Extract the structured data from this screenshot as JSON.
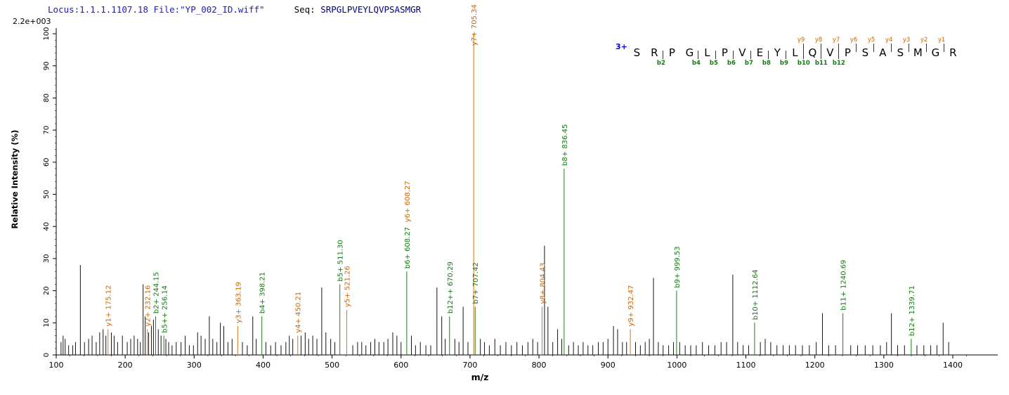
{
  "header": {
    "locus_file": "Locus:1.1.1.1107.18 File:\"YP_002_ID.wiff\"",
    "seq_label": "Seq:",
    "seq_value": "SRPGLPVEYLQVPSASMGR"
  },
  "colors": {
    "y_ion": "#cc6600",
    "y_line": "#d2781e",
    "b_ion": "#117a11",
    "b_line": "#1b7d1b",
    "peak": "#141414",
    "header_blue": "#1a1acd",
    "seq_blue": "#00008b",
    "charge_blue": "#0000dd"
  },
  "peptide": {
    "charge": "3+",
    "residues": [
      "S",
      "R",
      "P",
      "G",
      "L",
      "P",
      "V",
      "E",
      "Y",
      "L",
      "Q",
      "V",
      "P",
      "S",
      "A",
      "S",
      "M",
      "G",
      "R"
    ],
    "y_ions": [
      {
        "after": 10,
        "label": "y9"
      },
      {
        "after": 11,
        "label": "y8"
      },
      {
        "after": 12,
        "label": "y7"
      },
      {
        "after": 13,
        "label": "y6"
      },
      {
        "after": 14,
        "label": "y5"
      },
      {
        "after": 15,
        "label": "y4"
      },
      {
        "after": 16,
        "label": "y3"
      },
      {
        "after": 17,
        "label": "y2"
      },
      {
        "after": 18,
        "label": "y1"
      }
    ],
    "b_ions": [
      {
        "after": 2,
        "label": "b2"
      },
      {
        "after": 4,
        "label": "b4"
      },
      {
        "after": 5,
        "label": "b5"
      },
      {
        "after": 6,
        "label": "b6"
      },
      {
        "after": 7,
        "label": "b7"
      },
      {
        "after": 8,
        "label": "b8"
      },
      {
        "after": 9,
        "label": "b9"
      },
      {
        "after": 10,
        "label": "b10"
      },
      {
        "after": 11,
        "label": "b11"
      },
      {
        "after": 12,
        "label": "b12"
      }
    ]
  },
  "chart_data": {
    "type": "bar",
    "title": "",
    "xlabel": "m/z",
    "ylabel": "Relative  Intensity (%)",
    "intensity_scale": "2.2e+003",
    "xlim": [
      100,
      1430
    ],
    "ylim": [
      0,
      100
    ],
    "x_ticks": [
      100,
      200,
      300,
      400,
      500,
      600,
      700,
      800,
      900,
      1000,
      1100,
      1200,
      1300,
      1400
    ],
    "y_ticks": [
      0,
      10,
      20,
      30,
      40,
      50,
      60,
      70,
      80,
      90,
      100
    ],
    "legend": "none",
    "grid": false,
    "labeled_peaks": [
      {
        "mz": 175.12,
        "intensity": 8,
        "label": "y1+ 175.12",
        "ion": "y"
      },
      {
        "mz": 232.16,
        "intensity": 8,
        "label": "y2+ 232.16",
        "ion": "y"
      },
      {
        "mz": 244.15,
        "intensity": 12,
        "label": "b2+ 244.15",
        "ion": "b"
      },
      {
        "mz": 256.14,
        "intensity": 6,
        "label": "b5++ 256.14",
        "ion": "b"
      },
      {
        "mz": 363.19,
        "intensity": 9,
        "label": "y3+ 363.19",
        "ion": "y"
      },
      {
        "mz": 398.21,
        "intensity": 12,
        "label": "b4+ 398.21",
        "ion": "b"
      },
      {
        "mz": 450.21,
        "intensity": 6,
        "label": "y4+ 450.21",
        "ion": "y"
      },
      {
        "mz": 511.3,
        "intensity": 22,
        "label": "b5+ 511.30",
        "ion": "b"
      },
      {
        "mz": 521.26,
        "intensity": 14,
        "label": "y5+ 521.26",
        "ion": "y"
      },
      {
        "mz": 608.27,
        "intensity": 26,
        "label": "b6+ 608.27",
        "ion": "b"
      },
      {
        "mz": 608.27,
        "intensity": 26,
        "label": "y6+ 608.27",
        "ion": "y",
        "label_gap": 66,
        "draw_line": false
      },
      {
        "mz": 670.29,
        "intensity": 12,
        "label": "b12++ 670.29",
        "ion": "b"
      },
      {
        "mz": 705.34,
        "intensity": 100,
        "label": "y7+ 705.34",
        "ion": "y"
      },
      {
        "mz": 707.42,
        "intensity": 15,
        "label": "b7+ 707.42",
        "ion": "b"
      },
      {
        "mz": 804.43,
        "intensity": 15,
        "label": "y8+ 804.43",
        "ion": "y"
      },
      {
        "mz": 836.45,
        "intensity": 58,
        "label": "b8+ 836.45",
        "ion": "b"
      },
      {
        "mz": 932.47,
        "intensity": 8,
        "label": "y9+ 932.47",
        "ion": "y"
      },
      {
        "mz": 999.53,
        "intensity": 20,
        "label": "b9+ 999.53",
        "ion": "b"
      },
      {
        "mz": 1112.64,
        "intensity": 10,
        "label": "b10+ 1112.64",
        "ion": "b"
      },
      {
        "mz": 1240.69,
        "intensity": 13,
        "label": "b11+ 1240.69",
        "ion": "b"
      },
      {
        "mz": 1339.71,
        "intensity": 5,
        "label": "b12+ 1339.71",
        "ion": "b"
      }
    ],
    "noise_peaks": [
      [
        107,
        4
      ],
      [
        110,
        6
      ],
      [
        113,
        5
      ],
      [
        118,
        3
      ],
      [
        124,
        3
      ],
      [
        128,
        4
      ],
      [
        135,
        28
      ],
      [
        141,
        4
      ],
      [
        147,
        5
      ],
      [
        152,
        6
      ],
      [
        158,
        4
      ],
      [
        163,
        7
      ],
      [
        168,
        8
      ],
      [
        172,
        6
      ],
      [
        180,
        7
      ],
      [
        184,
        6
      ],
      [
        189,
        4
      ],
      [
        196,
        6
      ],
      [
        203,
        4
      ],
      [
        208,
        5
      ],
      [
        213,
        6
      ],
      [
        218,
        5
      ],
      [
        222,
        4
      ],
      [
        226,
        22
      ],
      [
        229,
        12
      ],
      [
        234,
        7
      ],
      [
        238,
        9
      ],
      [
        241,
        11
      ],
      [
        248,
        8
      ],
      [
        252,
        6
      ],
      [
        259,
        5
      ],
      [
        263,
        4
      ],
      [
        268,
        3
      ],
      [
        274,
        4
      ],
      [
        281,
        4
      ],
      [
        287,
        6
      ],
      [
        293,
        3
      ],
      [
        299,
        3
      ],
      [
        305,
        7
      ],
      [
        310,
        6
      ],
      [
        316,
        5
      ],
      [
        322,
        12
      ],
      [
        327,
        5
      ],
      [
        333,
        4
      ],
      [
        338,
        10
      ],
      [
        343,
        9
      ],
      [
        349,
        4
      ],
      [
        355,
        5
      ],
      [
        370,
        4
      ],
      [
        377,
        3
      ],
      [
        385,
        12
      ],
      [
        390,
        5
      ],
      [
        404,
        4
      ],
      [
        411,
        3
      ],
      [
        418,
        4
      ],
      [
        426,
        3
      ],
      [
        433,
        4
      ],
      [
        438,
        6
      ],
      [
        443,
        5
      ],
      [
        455,
        6
      ],
      [
        461,
        7
      ],
      [
        466,
        5
      ],
      [
        472,
        6
      ],
      [
        478,
        5
      ],
      [
        485,
        21
      ],
      [
        491,
        7
      ],
      [
        498,
        5
      ],
      [
        504,
        4
      ],
      [
        530,
        3
      ],
      [
        537,
        4
      ],
      [
        543,
        4
      ],
      [
        549,
        3
      ],
      [
        556,
        4
      ],
      [
        562,
        5
      ],
      [
        568,
        4
      ],
      [
        575,
        4
      ],
      [
        581,
        5
      ],
      [
        588,
        7
      ],
      [
        594,
        6
      ],
      [
        600,
        4
      ],
      [
        615,
        6
      ],
      [
        621,
        3
      ],
      [
        628,
        4
      ],
      [
        636,
        3
      ],
      [
        643,
        3
      ],
      [
        652,
        21
      ],
      [
        659,
        12
      ],
      [
        664,
        5
      ],
      [
        678,
        5
      ],
      [
        684,
        4
      ],
      [
        690,
        15
      ],
      [
        697,
        4
      ],
      [
        715,
        5
      ],
      [
        721,
        4
      ],
      [
        728,
        3
      ],
      [
        736,
        5
      ],
      [
        744,
        3
      ],
      [
        752,
        4
      ],
      [
        760,
        3
      ],
      [
        768,
        4
      ],
      [
        776,
        3
      ],
      [
        784,
        4
      ],
      [
        791,
        5
      ],
      [
        798,
        4
      ],
      [
        808,
        34
      ],
      [
        813,
        15
      ],
      [
        820,
        4
      ],
      [
        827,
        8
      ],
      [
        833,
        5
      ],
      [
        843,
        3
      ],
      [
        850,
        4
      ],
      [
        857,
        3
      ],
      [
        864,
        4
      ],
      [
        871,
        3
      ],
      [
        878,
        3
      ],
      [
        886,
        4
      ],
      [
        893,
        4
      ],
      [
        900,
        5
      ],
      [
        908,
        9
      ],
      [
        914,
        8
      ],
      [
        921,
        4
      ],
      [
        927,
        4
      ],
      [
        940,
        4
      ],
      [
        947,
        3
      ],
      [
        954,
        4
      ],
      [
        960,
        5
      ],
      [
        966,
        24
      ],
      [
        973,
        4
      ],
      [
        980,
        3
      ],
      [
        988,
        3
      ],
      [
        995,
        4
      ],
      [
        1004,
        4
      ],
      [
        1012,
        3
      ],
      [
        1020,
        3
      ],
      [
        1028,
        3
      ],
      [
        1037,
        4
      ],
      [
        1046,
        3
      ],
      [
        1055,
        3
      ],
      [
        1064,
        4
      ],
      [
        1072,
        4
      ],
      [
        1081,
        25
      ],
      [
        1088,
        4
      ],
      [
        1096,
        3
      ],
      [
        1104,
        3
      ],
      [
        1121,
        4
      ],
      [
        1128,
        5
      ],
      [
        1136,
        4
      ],
      [
        1145,
        3
      ],
      [
        1154,
        3
      ],
      [
        1163,
        3
      ],
      [
        1172,
        3
      ],
      [
        1182,
        3
      ],
      [
        1192,
        3
      ],
      [
        1202,
        4
      ],
      [
        1211,
        13
      ],
      [
        1220,
        3
      ],
      [
        1230,
        3
      ],
      [
        1252,
        3
      ],
      [
        1262,
        3
      ],
      [
        1273,
        3
      ],
      [
        1284,
        3
      ],
      [
        1295,
        3
      ],
      [
        1304,
        4
      ],
      [
        1311,
        13
      ],
      [
        1320,
        3
      ],
      [
        1330,
        3
      ],
      [
        1348,
        3
      ],
      [
        1358,
        3
      ],
      [
        1368,
        3
      ],
      [
        1377,
        3
      ],
      [
        1386,
        10
      ],
      [
        1394,
        4
      ]
    ]
  }
}
